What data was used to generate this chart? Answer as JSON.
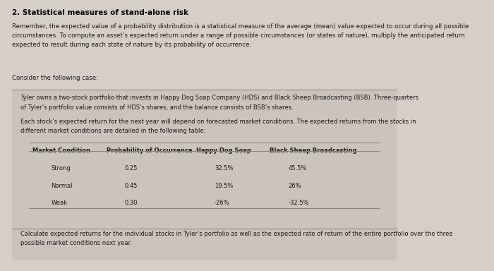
{
  "title": "2. Statistical measures of stand-alone risk",
  "para1": "Remember, the expected value of a probability distribution is a statistical measure of the average (mean) value expected to occur during all possible\ncircumstances. To compute an asset’s expected return under a range of possible circumstances (or states of nature), multiply the anticipated return\nexpected to result during each state of nature by its probability of occurrence.",
  "consider": "Consider the following case:",
  "box_text1": "Tyler owns a two-stock portfolio that invests in Happy Dog Soap Company (HDS) and Black Sheep Broadcasting (BSB). Three-quarters\nof Tyler’s portfolio value consists of HDS’s shares, and the balance consists of BSB’s shares.",
  "box_text2": "Each stock’s expected return for the next year will depend on forecasted market conditions. The expected returns from the stocks in\ndifferent market conditions are detailed in the following table:",
  "table_headers": [
    "Market Condition",
    "Probability of Occurrence",
    "Happy Dog Soap",
    "Black Sheep Broadcasting"
  ],
  "table_rows": [
    [
      "Strong",
      "0.25",
      "32.5%",
      "45.5%"
    ],
    [
      "Normal",
      "0.45",
      "19.5%",
      "26%"
    ],
    [
      "Weak",
      "0.30",
      "-26%",
      "-32.5%"
    ]
  ],
  "footer_text": "Calculate expected returns for the individual stocks in Tyler’s portfolio as well as the expected rate of return of the entire portfolio over the three\npossible market conditions next year.",
  "bg_color": "#d6cfc7",
  "box_bg_color": "#cbc4bc",
  "title_color": "#000000",
  "text_color": "#1a1a1a",
  "line_color": "#a09890",
  "table_line_color": "#888880"
}
